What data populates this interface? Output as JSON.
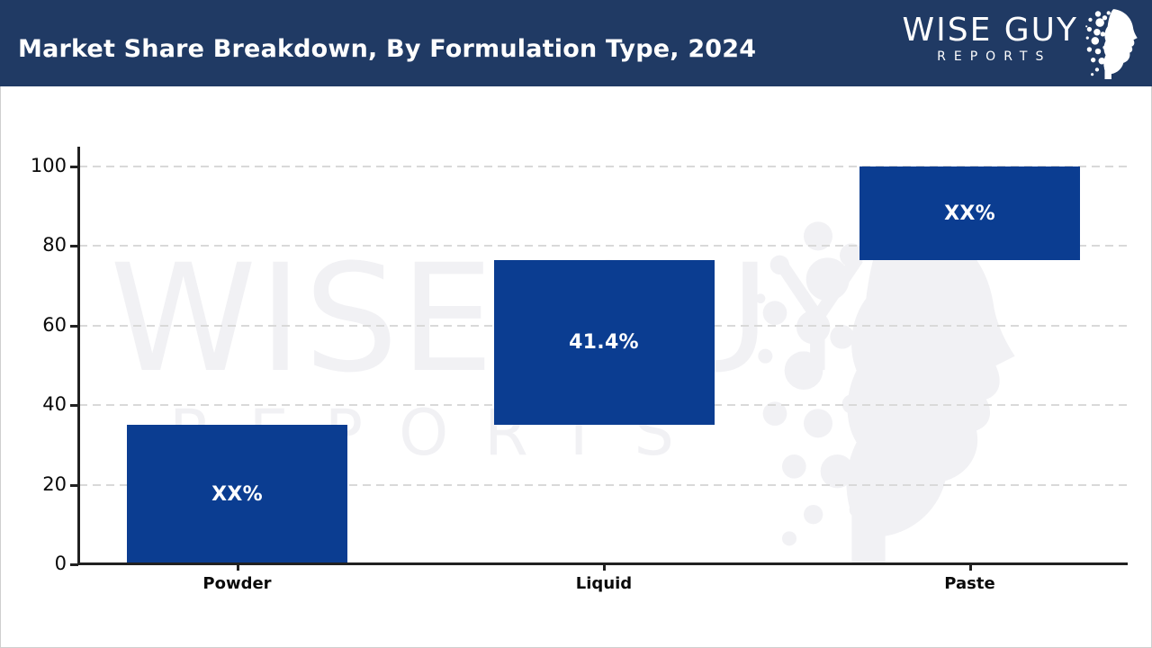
{
  "header": {
    "logo": {
      "line1": "WISE GUY",
      "line2": "REPORTS",
      "face_icon": "dotted-head-profile-icon"
    }
  },
  "watermark": {
    "line1": "WISE GUY",
    "line2": "REPORTS",
    "face_icon": "dotted-head-profile-icon"
  },
  "chart_data": {
    "type": "bar",
    "subtype": "floating-waterfall",
    "title": "Market Share Breakdown, By Formulation Type, 2024",
    "categories": [
      "Powder",
      "Liquid",
      "Paste"
    ],
    "segments": [
      {
        "category": "Powder",
        "start": 0,
        "end": 35,
        "label": "XX%"
      },
      {
        "category": "Liquid",
        "start": 35,
        "end": 76.4,
        "label": "41.4%"
      },
      {
        "category": "Paste",
        "start": 76.4,
        "end": 100,
        "label": "XX%"
      }
    ],
    "xlabel": "",
    "ylabel": "",
    "ylim": [
      0,
      105
    ],
    "yticks": [
      0,
      20,
      40,
      60,
      80,
      100
    ],
    "grid": "horizontal-dashed",
    "legend": "none",
    "colors": {
      "bar": "#0b3d91",
      "bar_label": "#ffffff",
      "header_bg": "#203a64",
      "header_text": "#ffffff",
      "axis": "#212121",
      "gridline": "#d9d9d9",
      "watermark": "#f1f1f4"
    }
  }
}
